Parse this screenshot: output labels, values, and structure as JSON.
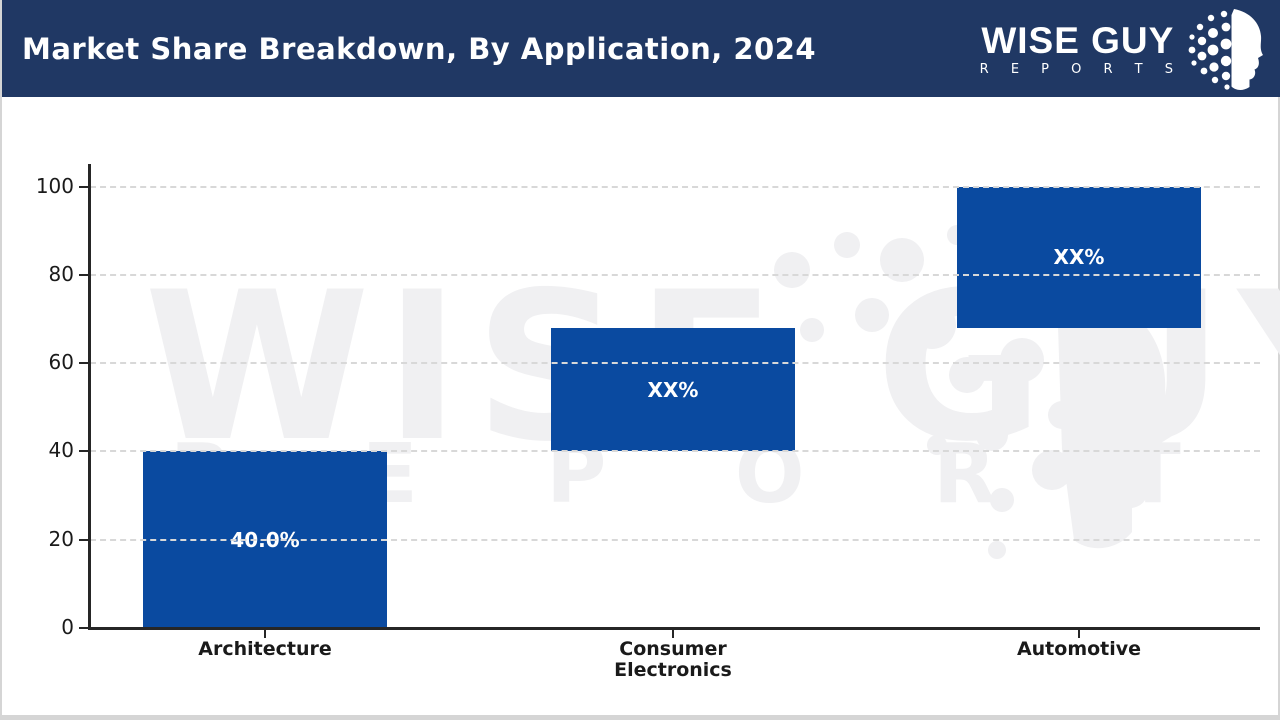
{
  "header": {
    "title": "Market Share Breakdown, By Application, 2024",
    "logo": {
      "line1": "WISE GUY",
      "line2": "R E P O R T S"
    }
  },
  "watermark": {
    "line1": "WISE GUY",
    "line2": "R E P O R T S"
  },
  "chart_data": {
    "type": "bar",
    "subtype": "floating-waterfall",
    "title": "Market Share Breakdown, By Application, 2024",
    "categories": [
      "Architecture",
      "Consumer Electronics",
      "Automotive"
    ],
    "segments": [
      {
        "category": "Architecture",
        "start": 0,
        "end": 40,
        "value": 40,
        "label": "40.0%"
      },
      {
        "category": "Consumer Electronics",
        "start": 40,
        "end": 68,
        "value": 28,
        "label": "XX%"
      },
      {
        "category": "Automotive",
        "start": 68,
        "end": 100,
        "value": 32,
        "label": "XX%"
      }
    ],
    "yticks": [
      0,
      20,
      40,
      60,
      80,
      100
    ],
    "ylim": [
      0,
      105
    ],
    "xlabel": "",
    "ylabel": "",
    "legend": "none",
    "grid": "horizontal dashed, drawn over bars"
  },
  "colors": {
    "header_bg": "#203864",
    "bar": "#0a4aa0",
    "grid": "#d8d8d8",
    "axis": "#262626",
    "bar_label": "#ffffff",
    "watermark": "#f0f0f2",
    "frame_border": "#d5d5d5"
  }
}
